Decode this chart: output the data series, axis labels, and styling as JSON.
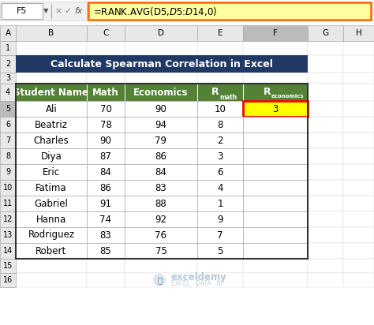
{
  "title": "Calculate Spearman Correlation in Excel",
  "title_bg": "#1F3864",
  "title_color": "#FFFFFF",
  "formula_bar_text": "=RANK.AVG(D5,$D$5:$D$14,0)",
  "formula_cell": "F5",
  "header_bg": "#538135",
  "header_color": "#FFFFFF",
  "col_labels": [
    "Student Name",
    "Math",
    "Economics",
    "R_math",
    "R_economics"
  ],
  "students": [
    [
      "Ali",
      70,
      90,
      10,
      "3"
    ],
    [
      "Beatriz",
      78,
      94,
      8,
      ""
    ],
    [
      "Charles",
      90,
      79,
      2,
      ""
    ],
    [
      "Diya",
      87,
      86,
      3,
      ""
    ],
    [
      "Eric",
      84,
      84,
      6,
      ""
    ],
    [
      "Fatima",
      86,
      83,
      4,
      ""
    ],
    [
      "Gabriel",
      91,
      88,
      1,
      ""
    ],
    [
      "Hanna",
      74,
      92,
      9,
      ""
    ],
    [
      "Rodriguez",
      83,
      76,
      7,
      ""
    ],
    [
      "Robert",
      85,
      75,
      5,
      ""
    ]
  ],
  "highlighted_cell_row": 0,
  "highlighted_cell_col": 4,
  "highlight_bg": "#FFFF00",
  "highlight_border": "#FF0000",
  "grid_color": "#A9A9A9",
  "excel_col_headers": [
    "A",
    "B",
    "C",
    "D",
    "E",
    "F",
    "G",
    "H"
  ],
  "excel_row_headers": [
    "1",
    "2",
    "3",
    "4",
    "5",
    "6",
    "7",
    "8",
    "9",
    "10",
    "11",
    "12",
    "13",
    "14",
    "15",
    "16"
  ],
  "col_header_bg": "#E8E8E8",
  "selected_col_header_bg": "#BBBBBB",
  "selected_col_header": "F",
  "selected_row_header": 4,
  "formula_bar_bg": "#FFFFA0",
  "formula_bar_border": "#FF6600",
  "background": "#FFFFFF",
  "watermark_color": "#A0B8CC"
}
